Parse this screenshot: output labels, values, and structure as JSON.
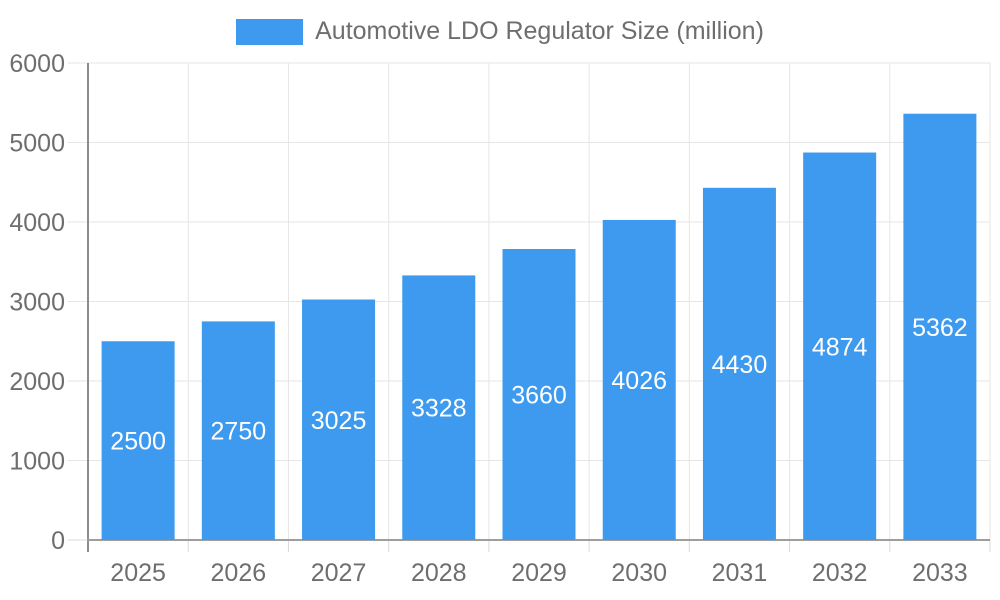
{
  "chart_data": {
    "type": "bar",
    "title": "Automotive LDO Regulator Size (million)",
    "categories": [
      "2025",
      "2026",
      "2027",
      "2028",
      "2029",
      "2030",
      "2031",
      "2032",
      "2033"
    ],
    "values": [
      2500,
      2750,
      3025,
      3328,
      3660,
      4026,
      4430,
      4874,
      5362
    ],
    "xlabel": "",
    "ylabel": "",
    "ylim": [
      0,
      6000
    ],
    "y_ticks": [
      0,
      1000,
      2000,
      3000,
      4000,
      5000,
      6000
    ],
    "grid": true,
    "legend_position": "top",
    "bar_value_labels_visible": true
  },
  "style": {
    "bar_color": "#3D9AEE",
    "grid_color": "#e6e6e6",
    "tick_color": "#d9d9d9",
    "y_axis_line_color": "#8c8c8c",
    "x_axis_line_color": "#9e9e9e",
    "text_color": "#6e6e6e",
    "bar_label_color": "#ffffff",
    "background_color": "#ffffff"
  }
}
